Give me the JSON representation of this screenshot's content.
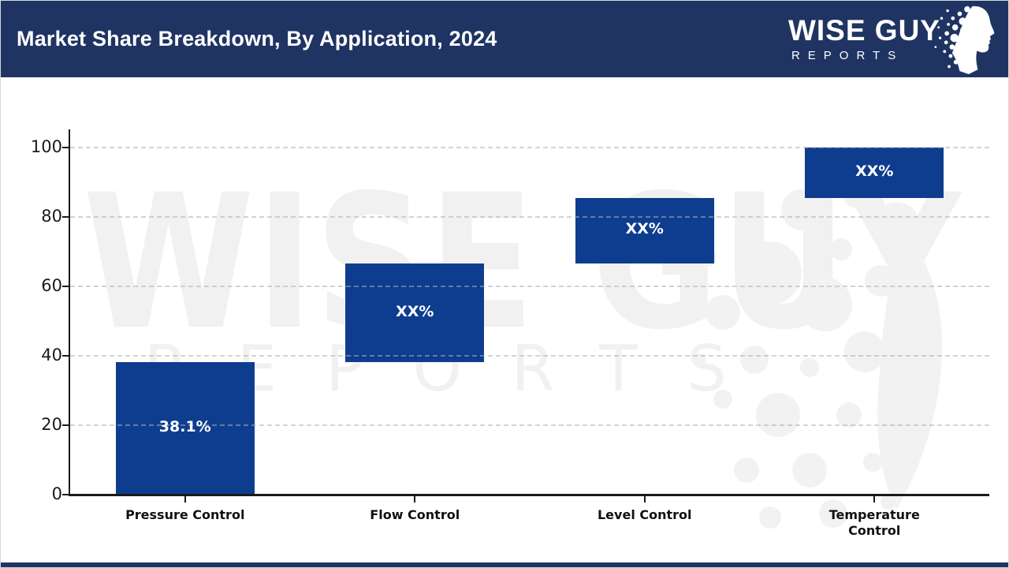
{
  "header": {
    "title": "Market Share Breakdown, By Application, 2024",
    "logo": {
      "line1": "WISE GUY",
      "line2": "REPORTS"
    }
  },
  "watermark": {
    "line1": "WISE GUY",
    "line2": "REPORTS"
  },
  "chart_data": {
    "type": "bar",
    "subtype": "stacked-waterfall",
    "title": "Market Share Breakdown, By Application, 2024",
    "categories": [
      "Pressure Control",
      "Flow Control",
      "Level Control",
      "Temperature Control"
    ],
    "x_tick_lines": [
      [
        "Pressure Control"
      ],
      [
        "Flow Control"
      ],
      [
        "Level Control"
      ],
      [
        "Temperature",
        "Control"
      ]
    ],
    "segments": [
      {
        "category": "Pressure Control",
        "start": 0,
        "end": 38.1,
        "value": 38.1,
        "label": "38.1%"
      },
      {
        "category": "Flow Control",
        "start": 38.1,
        "end": 66.6,
        "value": 28.5,
        "label": "XX%"
      },
      {
        "category": "Level Control",
        "start": 66.6,
        "end": 85.5,
        "value": 18.9,
        "label": "XX%"
      },
      {
        "category": "Temperature Control",
        "start": 85.5,
        "end": 100,
        "value": 14.5,
        "label": "XX%"
      }
    ],
    "y_ticks": [
      0,
      20,
      40,
      60,
      80,
      100
    ],
    "ylim": [
      0,
      105
    ],
    "xlabel": "",
    "ylabel": "",
    "grid": "horizontal-dashed",
    "legend": "none",
    "bar_color": "#0e3d8f",
    "bar_label_color": "#ffffff"
  },
  "colors": {
    "header_bg": "#1f3463",
    "footer_bg": "#1f3463",
    "bar": "#0e3d8f",
    "axis": "#1a1a1a",
    "watermark": "#f1f1f1"
  }
}
